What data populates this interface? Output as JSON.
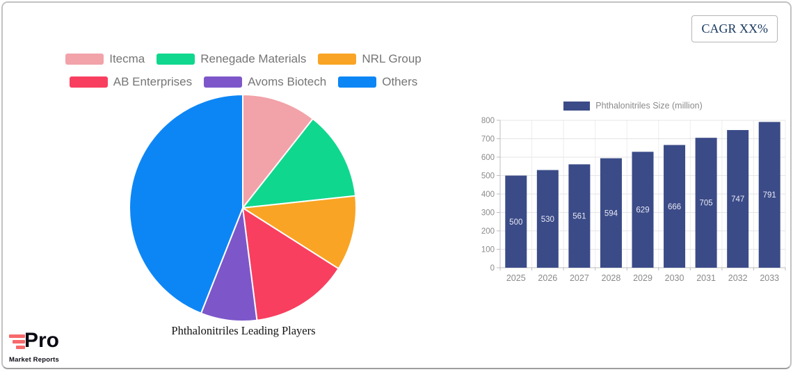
{
  "cagr": {
    "label": "CAGR XX%"
  },
  "logo": {
    "name": "Pro",
    "subtitle": "Market Reports",
    "bar_color": "#f7696b"
  },
  "chart_data": [
    {
      "type": "pie",
      "title": "Phthalonitriles Leading Players",
      "legend_position": "top",
      "start_angle": "top",
      "direction": "clockwise",
      "slices": [
        {
          "label": "Itecma",
          "value_pct": 10.6,
          "color": "#f2a2a9"
        },
        {
          "label": "Renegade Materials",
          "value_pct": 12.7,
          "color": "#10d78e"
        },
        {
          "label": "NRL Group",
          "value_pct": 10.7,
          "color": "#f9a424"
        },
        {
          "label": "AB Enterprises",
          "value_pct": 14.0,
          "color": "#f83f5f"
        },
        {
          "label": "Avoms Biotech",
          "value_pct": 8.0,
          "color": "#7d57c9"
        },
        {
          "label": "Others",
          "value_pct": 44.0,
          "color": "#0d86f5"
        }
      ]
    },
    {
      "type": "bar",
      "legend_label": "Phthalonitriles Size (million)",
      "categories": [
        "2025",
        "2026",
        "2027",
        "2028",
        "2029",
        "2030",
        "2031",
        "2032",
        "2033"
      ],
      "values": [
        500,
        530,
        561,
        594,
        629,
        666,
        705,
        747,
        791
      ],
      "bar_color": "#3b4b88",
      "value_label_color": "#e8e9f2",
      "axis_text_color": "#8a8a8a",
      "ylim": [
        0,
        800
      ],
      "ytick_step": 100,
      "grid": true,
      "legend_position": "top"
    }
  ]
}
